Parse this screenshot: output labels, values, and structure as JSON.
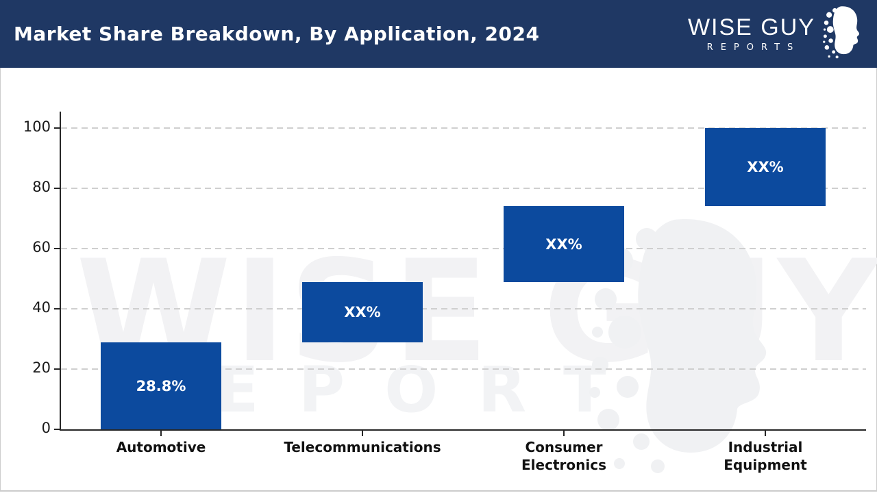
{
  "header": {
    "title": "Market Share Breakdown, By Application, 2024",
    "logo_line1": "WISE GUY",
    "logo_line2": "REPORTS"
  },
  "watermark": {
    "line1": "WISE GUY",
    "line2": "REPORTS"
  },
  "colors": {
    "header_bg": "#1F3864",
    "bar": "#0C4A9E",
    "axis": "#262626",
    "grid": "#CFCFCF",
    "value_label": "#FFFFFF",
    "category_label": "#111111",
    "watermark": "#F2F2F4"
  },
  "chart_data": {
    "type": "bar",
    "subtype": "floating-waterfall",
    "title": "Market Share Breakdown, By Application, 2024",
    "categories": [
      "Automotive",
      "Telecommunications",
      "Consumer\nElectronics",
      "Industrial\nEquipment"
    ],
    "series": [
      {
        "name": "Market Share %",
        "segments": [
          {
            "category": "Automotive",
            "start": 0,
            "end": 28.8,
            "label": "28.8%"
          },
          {
            "category": "Telecommunications",
            "start": 28.8,
            "end": 48.8,
            "label": "XX%"
          },
          {
            "category": "Consumer Electronics",
            "start": 48.8,
            "end": 74,
            "label": "XX%"
          },
          {
            "category": "Industrial Equipment",
            "start": 74,
            "end": 100,
            "label": "XX%"
          }
        ]
      }
    ],
    "ylim": [
      0,
      100
    ],
    "yticks": [
      0,
      20,
      40,
      60,
      80,
      100
    ],
    "xlabel": "",
    "ylabel": "",
    "grid": "horizontal-dashed",
    "legend": "none"
  }
}
